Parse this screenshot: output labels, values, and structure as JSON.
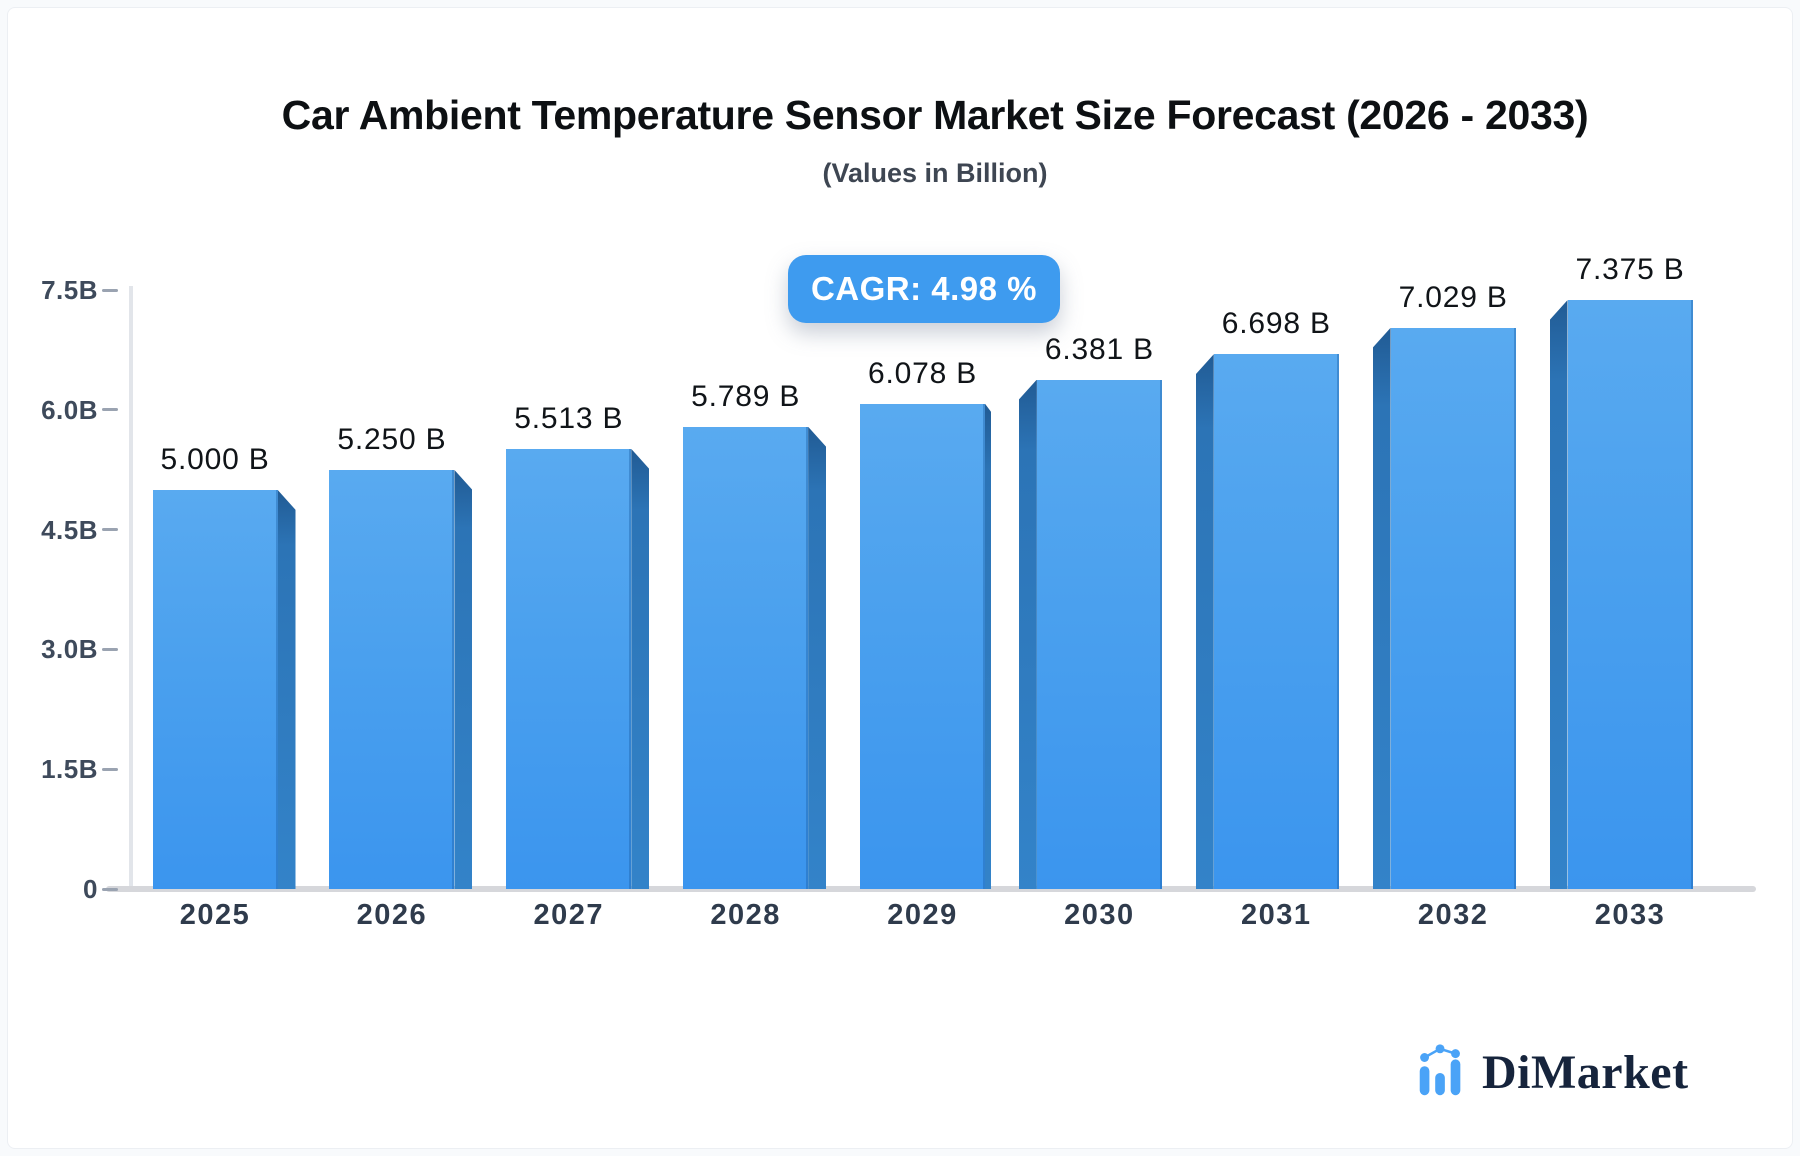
{
  "title": "Car Ambient Temperature Sensor Market Size Forecast (2026 - 2033)",
  "subtitle": "(Values in Billion)",
  "badge": {
    "label": "CAGR: 4.98 %"
  },
  "logo": {
    "name": "DiMarket",
    "icon": "mini-bar-chart-icon"
  },
  "colors": {
    "bar_front_top": "#59aaf0",
    "bar_front_bottom": "#3b95ee",
    "bar_side": "#2c74b6",
    "badge_bg": "#3e9bef",
    "baseline": "#d6d7db",
    "logo_blue": "#4aa3f7",
    "logo_text": "#16243c"
  },
  "chart_data": {
    "type": "bar",
    "title": "Car Ambient Temperature Sensor Market Size Forecast (2026 - 2033)",
    "subtitle": "(Values in Billion)",
    "annotation": "CAGR: 4.98 %",
    "categories": [
      "2025",
      "2026",
      "2027",
      "2028",
      "2029",
      "2030",
      "2031",
      "2032",
      "2033"
    ],
    "values": [
      5.0,
      5.25,
      5.513,
      5.789,
      6.078,
      6.381,
      6.698,
      7.029,
      7.375
    ],
    "value_labels": [
      "5.000 B",
      "5.250 B",
      "5.513 B",
      "5.789 B",
      "6.078 B",
      "6.381 B",
      "6.698 B",
      "7.029 B",
      "7.375 B"
    ],
    "xlabel": "",
    "ylabel": "",
    "ylim": [
      0,
      7.5
    ],
    "ytick_values": [
      0,
      1.5,
      3.0,
      4.5,
      6.0,
      7.5
    ],
    "ytick_labels": [
      "0",
      "1.5B",
      "3.0B",
      "4.5B",
      "6.0B",
      "7.5B"
    ],
    "grid": false,
    "legend": false,
    "bar_style": "pseudo-3d"
  }
}
